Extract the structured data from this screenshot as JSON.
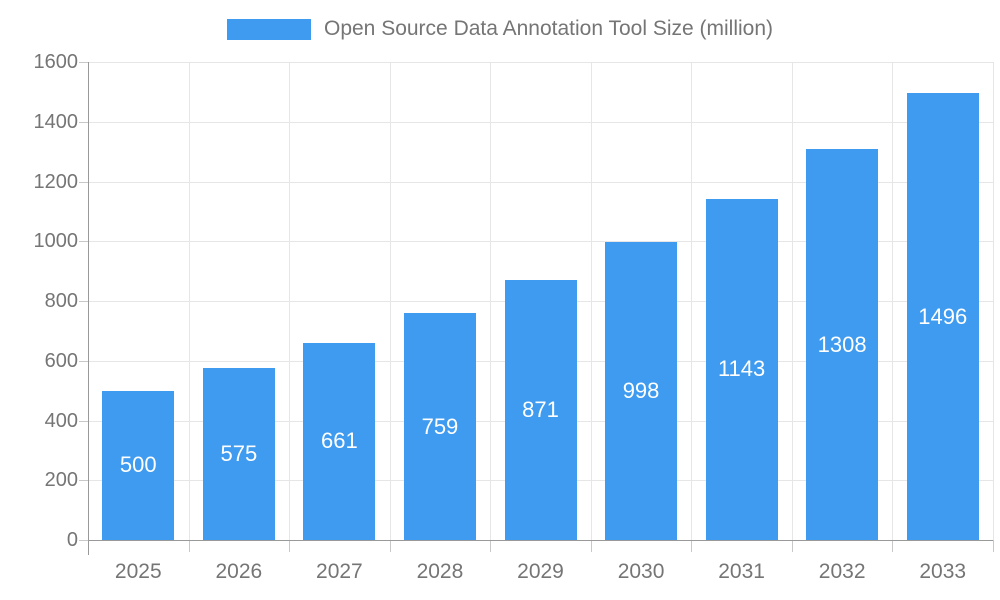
{
  "chart_data": {
    "type": "bar",
    "title": "Open Source Data Annotation Tool Size (million)",
    "legend": {
      "position": "top",
      "entries": [
        "Open Source Data Annotation Tool Size (million)"
      ]
    },
    "categories": [
      "2025",
      "2026",
      "2027",
      "2028",
      "2029",
      "2030",
      "2031",
      "2032",
      "2033"
    ],
    "values": [
      500,
      575,
      661,
      759,
      871,
      998,
      1143,
      1308,
      1496
    ],
    "value_labels_shown": true,
    "xlabel": "",
    "ylabel": "",
    "ylim": [
      0,
      1600
    ],
    "ytick_step": 200,
    "yticks": [
      0,
      200,
      400,
      600,
      800,
      1000,
      1200,
      1400,
      1600
    ],
    "grid": true,
    "colors": {
      "bar": "#3E9BF0",
      "grid": "#e6e6e6",
      "axis": "#999999",
      "tick": "#c8c8c8",
      "label": "#757575",
      "value_text": "#ffffff",
      "background": "#ffffff"
    }
  }
}
